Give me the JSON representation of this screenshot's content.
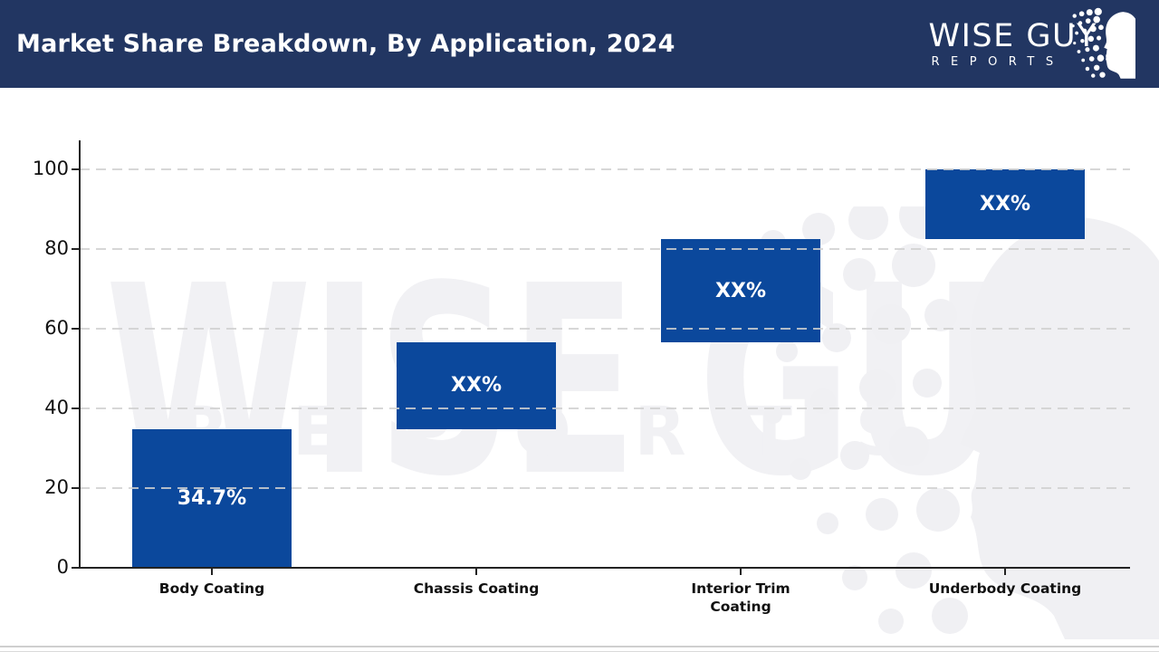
{
  "header": {
    "title": "Market Share Breakdown, By Application, 2024",
    "bg_color": "#223662",
    "logo": {
      "line1": "WISE GUY",
      "line2": "REPORTS"
    }
  },
  "watermark": {
    "line1": "WISE GUY",
    "line2": "REPORTS"
  },
  "chart_data": {
    "type": "bar",
    "subtype": "waterfall",
    "title": "Market Share Breakdown, By Application, 2024",
    "categories": [
      "Body Coating",
      "Chassis Coating",
      "Interior Trim Coating",
      "Underbody Coating"
    ],
    "category_lines": [
      "Body Coating",
      "Chassis Coating",
      "Interior Trim\nCoating",
      "Underbody Coating"
    ],
    "segments": [
      {
        "category": "Body Coating",
        "start": 0,
        "end": 34.7,
        "label": "34.7%"
      },
      {
        "category": "Chassis Coating",
        "start": 34.7,
        "end": 56.6,
        "label": "XX%"
      },
      {
        "category": "Interior Trim Coating",
        "start": 56.5,
        "end": 82.4,
        "label": "XX%"
      },
      {
        "category": "Underbody Coating",
        "start": 82.5,
        "end": 100,
        "label": "XX%"
      }
    ],
    "xlabel": "",
    "ylabel": "",
    "ylim": [
      0,
      100
    ],
    "yticks": [
      0,
      20,
      40,
      60,
      80,
      100
    ],
    "grid": "horizontal-dashed",
    "legend": "none",
    "bar_color": "#0b489c",
    "bar_label_color": "#ffffff",
    "axis_color": "#232323",
    "gridline_color": "#d0d0d0"
  }
}
